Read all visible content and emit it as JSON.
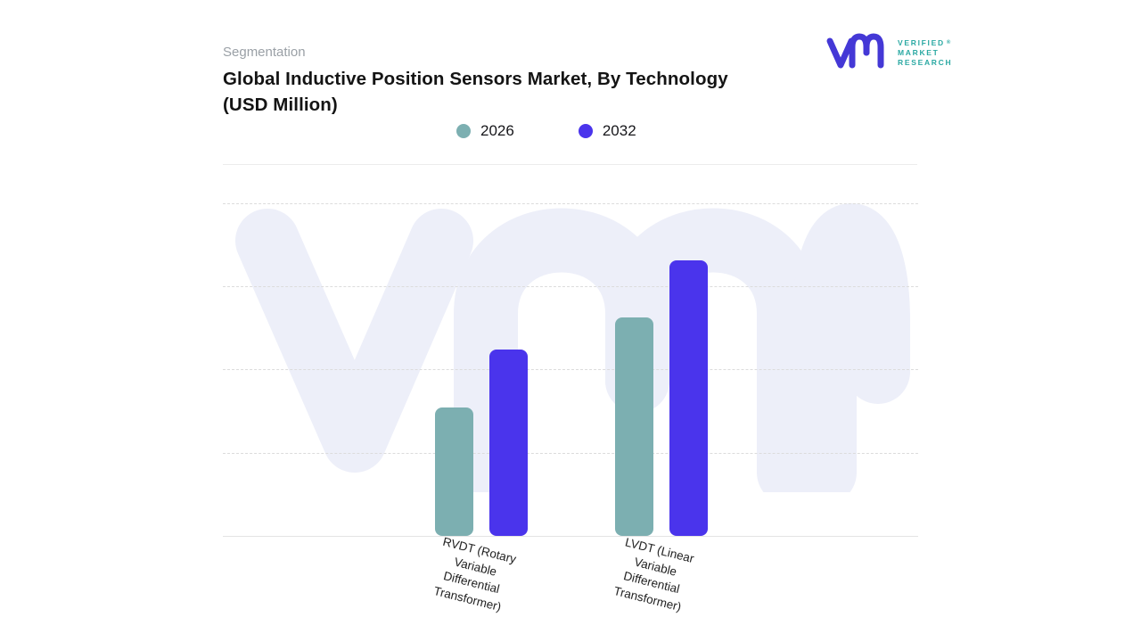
{
  "brand": {
    "name": "Verified Market Research",
    "lines": [
      "VERIFIED",
      "MARKET",
      "RESEARCH"
    ],
    "registered_mark": "®",
    "mark_color": "#4438d6",
    "text_color": "#2ba9a3"
  },
  "header": {
    "eyebrow": "Segmentation",
    "title_lines": [
      "Global Inductive Position Sensors Market, By Technology",
      "(USD Million)"
    ]
  },
  "chart_data": {
    "type": "bar",
    "title": "Global Inductive Position Sensors Market, By Technology (USD Million)",
    "units": "USD Million",
    "categories": [
      "RVDT (Rotary Variable Differential Transformer)",
      "LVDT (Linear Variable Differential Transformer)"
    ],
    "category_label_lines": [
      [
        "RVDT (Rotary",
        "Variable",
        "Differential",
        "Transformer)"
      ],
      [
        "LVDT (Linear",
        "Variable",
        "Differential",
        "Transformer)"
      ]
    ],
    "series": [
      {
        "name": "2026",
        "color": "#7cafb1",
        "values": [
          38.6,
          65.7
        ]
      },
      {
        "name": "2032",
        "color": "#4a34ec",
        "values": [
          56.0,
          82.8
        ]
      }
    ],
    "value_unit": "percent-of-plot-height",
    "y_tick_labels_visible": false,
    "xlabel": "",
    "ylabel": "",
    "ylim": [
      0,
      100
    ],
    "gridline_values": [
      25,
      50,
      75,
      100
    ],
    "gridline_style": "dashed",
    "legend_position": "top",
    "bar_corner_radius_px": 8,
    "watermark": "vmr-logo",
    "colors": {
      "grid": "#dcdcdc",
      "axis_line": "#e3e3e3",
      "watermark": "#edeff9",
      "title": "#141414",
      "eyebrow": "#9aa0a6",
      "tick_label": "#222222"
    }
  }
}
